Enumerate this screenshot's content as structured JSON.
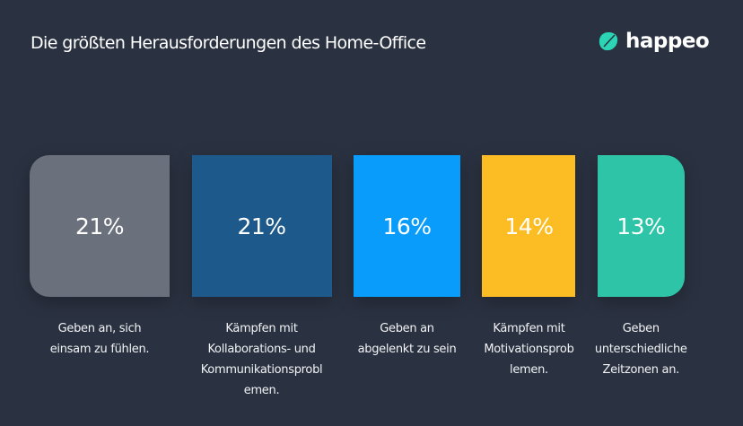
{
  "header": {
    "title": "Die größten Herausforderungen des Home-Office",
    "logo_text": "happeo",
    "logo_color": "#2bd4b4"
  },
  "chart_data": {
    "type": "bar",
    "orientation": "horizontal-proportional-blocks",
    "unit": "%",
    "categories": [
      [
        "Geben an, sich",
        "einsam zu fühlen."
      ],
      [
        "Kämpfen mit",
        "Kollaborations- und",
        "Kommunikationsprobl",
        "emen."
      ],
      [
        "Geben an",
        "abgelenkt zu sein"
      ],
      [
        "Kämpfen mit",
        "Motivationsprob",
        "lemen."
      ],
      [
        "Geben",
        "unterschiedliche",
        "Zeitzonen an."
      ]
    ],
    "values": [
      21,
      21,
      16,
      14,
      13
    ],
    "data_labels": [
      "21%",
      "21%",
      "16%",
      "14%",
      "13%"
    ],
    "colors": [
      "#6b717c",
      "#1d5a8b",
      "#0a9cfb",
      "#fbbd23",
      "#2dc4a7"
    ],
    "background": "#2a3140",
    "grid": false,
    "legend": "none"
  }
}
